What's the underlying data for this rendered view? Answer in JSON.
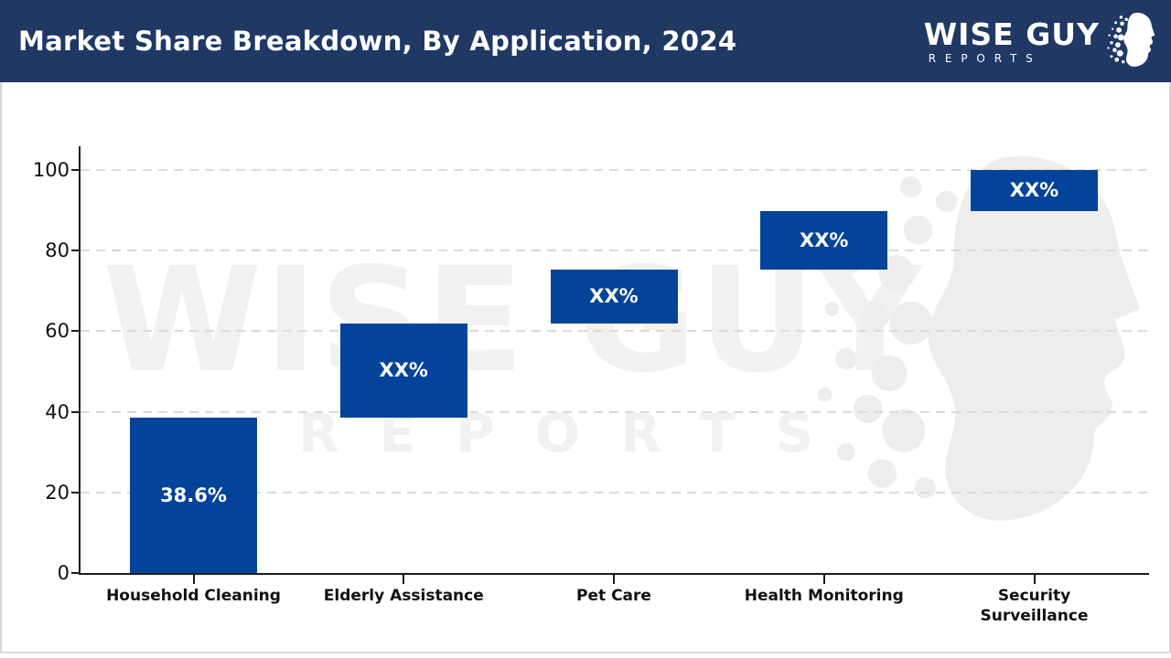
{
  "header": {
    "title": "Market Share Breakdown, By Application, 2024"
  },
  "logo": {
    "name_top": "WISE GUY",
    "name_bottom": "REPORTS"
  },
  "watermark": {
    "line1": "WISE GUY",
    "line2": "REPORTS"
  },
  "chart_data": {
    "type": "bar",
    "subtype": "waterfall (stacked market-share steps summing to 100%)",
    "title": "Market Share Breakdown, By Application, 2024",
    "categories": [
      "Household Cleaning",
      "Elderly Assistance",
      "Pet Care",
      "Health Monitoring",
      "Security Surveillance"
    ],
    "bars": [
      {
        "category": "Household Cleaning",
        "label": "38.6%",
        "start": 0,
        "end": 38.6,
        "share": 38.6
      },
      {
        "category": "Elderly Assistance",
        "label": "XX%",
        "start": 38.6,
        "end": 61.9,
        "share": 23.3
      },
      {
        "category": "Pet Care",
        "label": "XX%",
        "start": 61.9,
        "end": 75.3,
        "share": 13.4
      },
      {
        "category": "Health Monitoring",
        "label": "XX%",
        "start": 75.3,
        "end": 89.8,
        "share": 14.5
      },
      {
        "category": "Security Surveillance",
        "label": "XX%",
        "start": 89.8,
        "end": 100,
        "share": 10.2
      }
    ],
    "xlabel": "",
    "ylabel": "",
    "yticks": [
      0,
      20,
      40,
      60,
      80,
      100
    ],
    "ylim": [
      0,
      106
    ],
    "grid": true,
    "grid_style": "dashed",
    "bar_color": "#04439a",
    "value_label_color": "#ffffff",
    "legend": "none"
  },
  "colors": {
    "header_bg": "#1f3864",
    "bar_blue": "#04439a",
    "grid": "#dadada",
    "axis": "#1c1c1c",
    "text": "#111111",
    "value_label": "#ffffff",
    "watermark": "#f1f1f1",
    "frame_border": "#d8d8d8",
    "background": "#ffffff"
  }
}
